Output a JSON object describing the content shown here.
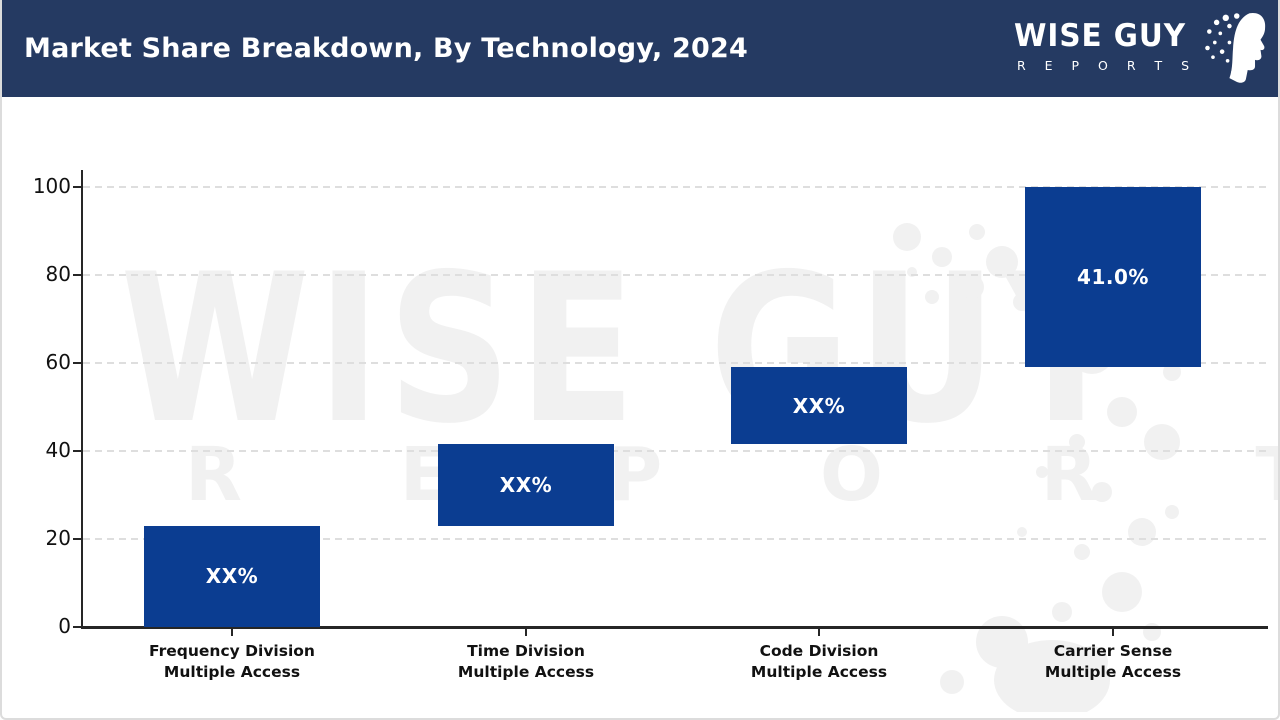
{
  "header": {
    "title": "Market Share Breakdown, By Technology, 2024",
    "background_color": "#253a62",
    "logo": {
      "line1": "WISE GUY",
      "line2": "R E P O R T S"
    }
  },
  "watermark": {
    "line1": "WISE GUY",
    "line2": "R E P O R T S"
  },
  "chart_data": {
    "type": "bar",
    "subtype": "floating-segment-waterfall",
    "title": "Market Share Breakdown, By Technology, 2024",
    "xlabel": "",
    "ylabel": "",
    "ylim": [
      0,
      104
    ],
    "grid": "horizontal-dashed",
    "legend": "none",
    "bar_color": "#0b3d91",
    "bar_label_color": "#ffffff",
    "yticks": [
      "0",
      "20",
      "40",
      "60",
      "80",
      "100"
    ],
    "bars": [
      {
        "cat1": "Frequency Division",
        "cat2": "Multiple Access",
        "start": 0,
        "end": 23,
        "value_label": "XX%"
      },
      {
        "cat1": "Time Division",
        "cat2": "Multiple Access",
        "start": 23,
        "end": 41.5,
        "value_label": "XX%"
      },
      {
        "cat1": "Code Division",
        "cat2": "Multiple Access",
        "start": 41.5,
        "end": 59,
        "value_label": "XX%"
      },
      {
        "cat1": "Carrier Sense",
        "cat2": "Multiple Access",
        "start": 59,
        "end": 100,
        "value_label": "41.0%"
      }
    ]
  }
}
